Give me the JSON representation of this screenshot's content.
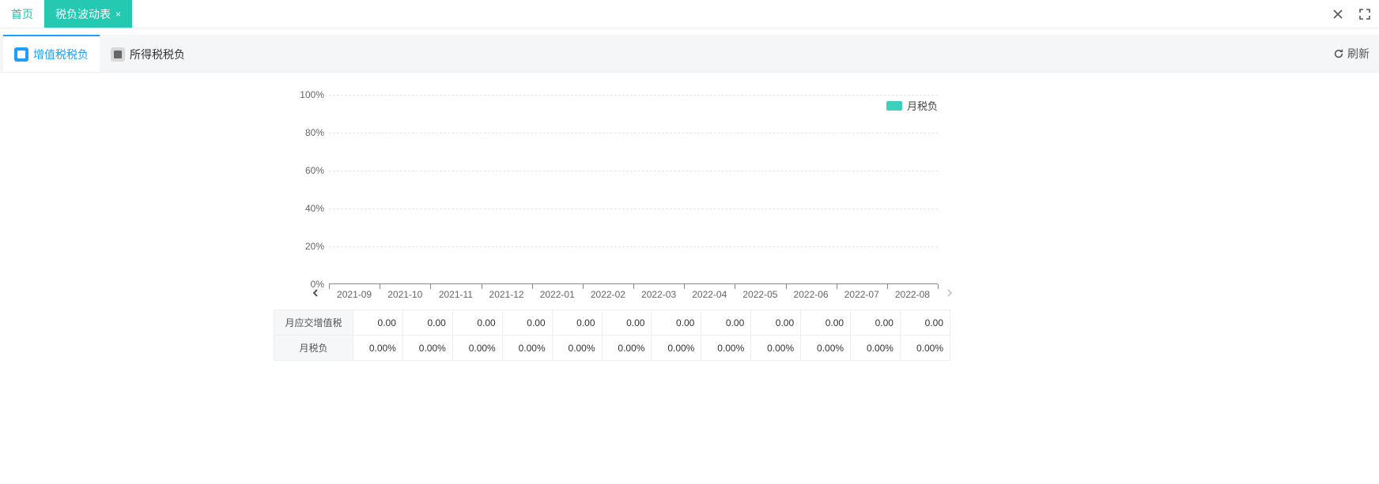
{
  "topbar": {
    "home_label": "首页",
    "active_tab_label": "税负波动表",
    "close_glyph": "×"
  },
  "subtabs": {
    "vat_label": "增值税税负",
    "income_label": "所得税税负"
  },
  "actions": {
    "refresh_label": "刷新"
  },
  "chart": {
    "type": "line",
    "legend_label": "月税负",
    "legend_color": "#3fd0bd",
    "ylim": [
      0,
      100
    ],
    "ytick_step": 20,
    "yticks": [
      "0%",
      "20%",
      "40%",
      "60%",
      "80%",
      "100%"
    ],
    "grid_color": "#e4e4e4",
    "axis_color": "#888888",
    "background_color": "#ffffff",
    "categories": [
      "2021-09",
      "2021-10",
      "2021-11",
      "2021-12",
      "2022-01",
      "2022-02",
      "2022-03",
      "2022-04",
      "2022-05",
      "2022-06",
      "2022-07",
      "2022-08"
    ],
    "series": [
      {
        "name": "月税负",
        "color": "#3fd0bd",
        "values": [
          0,
          0,
          0,
          0,
          0,
          0,
          0,
          0,
          0,
          0,
          0,
          0
        ]
      }
    ]
  },
  "table": {
    "row1_header": "月应交增值税",
    "row2_header": "月税负",
    "row1": [
      "0.00",
      "0.00",
      "0.00",
      "0.00",
      "0.00",
      "0.00",
      "0.00",
      "0.00",
      "0.00",
      "0.00",
      "0.00",
      "0.00"
    ],
    "row2": [
      "0.00%",
      "0.00%",
      "0.00%",
      "0.00%",
      "0.00%",
      "0.00%",
      "0.00%",
      "0.00%",
      "0.00%",
      "0.00%",
      "0.00%",
      "0.00%"
    ]
  }
}
